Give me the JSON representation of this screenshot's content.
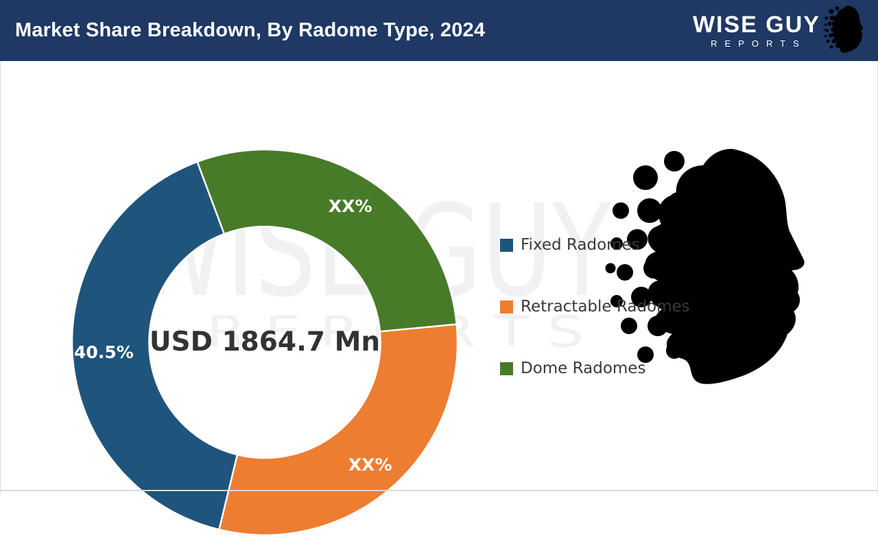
{
  "header": {
    "title": "Market Share Breakdown, By Radome Type, 2024",
    "bg_color": "#1F3864",
    "logo": {
      "name": "WISE GUY",
      "sub": "REPORTS"
    }
  },
  "watermark": {
    "name": "WISE GUY",
    "sub": "R E P O R T S"
  },
  "chart_data": {
    "type": "pie",
    "variant": "donut",
    "title": "Market Share Breakdown, By Radome Type, 2024",
    "center_label": "USD 1864.7 Mn",
    "categories": [
      "Fixed Radomes",
      "Retractable Radomes",
      "Dome Radomes"
    ],
    "values": [
      40.5,
      30.3,
      29.2
    ],
    "slice_labels": [
      "40.5%",
      "XX%",
      "XX%"
    ],
    "colors": [
      "#1F547C",
      "#ED7D31",
      "#477B28"
    ],
    "start_angle_deg": 110.5,
    "counterclockwise": true,
    "inner_radius_ratio": 0.6,
    "legend_position": "right"
  },
  "legend": {
    "items": [
      {
        "label": "Fixed Radomes",
        "color": "#1F547C"
      },
      {
        "label": "Retractable Radomes",
        "color": "#ED7D31"
      },
      {
        "label": "Dome Radomes",
        "color": "#477B28"
      }
    ]
  }
}
